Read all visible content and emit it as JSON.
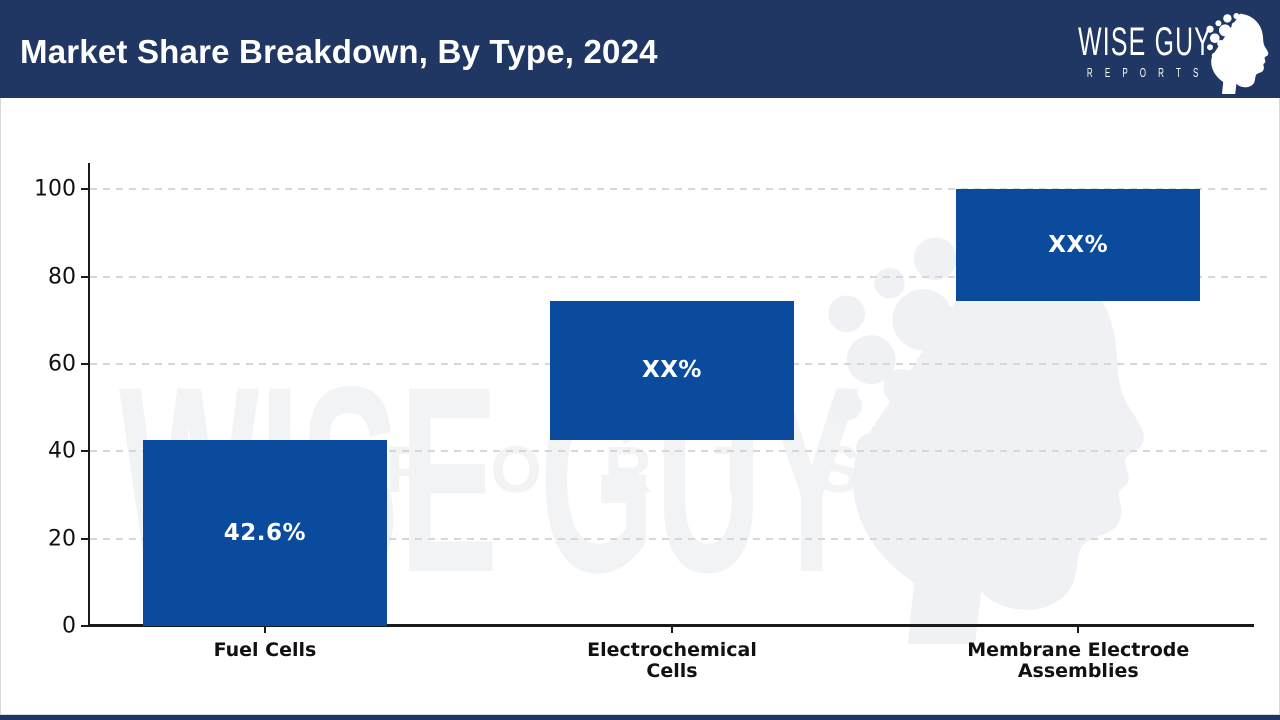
{
  "header": {
    "title": "Market Share Breakdown, By Type, 2024",
    "bg_color": "#203764",
    "logo": {
      "line1": "WISE GUY",
      "line2": "R E P O R T S"
    }
  },
  "watermark": {
    "line1": "WISE GUY",
    "line2": "R E P O R T S"
  },
  "chart_data": {
    "type": "bar",
    "variant": "waterfall-floating-bars",
    "title": "Market Share Breakdown, By Type, 2024",
    "xlabel": "",
    "ylabel": "",
    "ylim": [
      0,
      100
    ],
    "yticks": [
      0,
      20,
      40,
      60,
      80,
      100
    ],
    "grid": "horizontal-dashed",
    "legend": false,
    "bar_color": "#0b4b9e",
    "value_label_color": "#ffffff",
    "categories": [
      [
        "Fuel Cells"
      ],
      [
        "Electrochemical",
        "Cells"
      ],
      [
        "Membrane Electrode",
        "Assemblies"
      ]
    ],
    "bars": [
      {
        "category": "Fuel Cells",
        "start": 0,
        "end": 42.6,
        "label": "42.6%"
      },
      {
        "category": "Electrochemical Cells",
        "start": 42.6,
        "end": 74.5,
        "label": "XX%"
      },
      {
        "category": "Membrane Electrode Assemblies",
        "start": 74.5,
        "end": 100,
        "label": "XX%"
      }
    ],
    "layout": {
      "y_axis_top_value": 105.6,
      "bar_centers_pct": [
        15.03,
        50.0,
        84.9
      ],
      "bar_width_pct": 20.96
    }
  },
  "footer": {
    "bg_color": "#203764"
  }
}
